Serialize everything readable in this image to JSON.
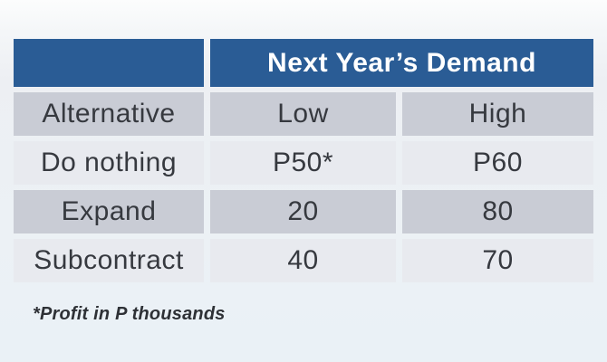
{
  "table": {
    "header_title": "Next Year’s Demand",
    "header_row": [
      "Alternative",
      "Low",
      "High"
    ],
    "rows": [
      [
        "Do nothing",
        "P50*",
        "P60"
      ],
      [
        "Expand",
        "20",
        "80"
      ],
      [
        "Subcontract",
        "40",
        "70"
      ]
    ],
    "footnote": "*Profit in P thousands"
  },
  "colors": {
    "header_blue": "#2a5c95",
    "row_medium_gray": "#c9ccd5",
    "row_light_gray": "#e8eaef",
    "header_text": "#ffffff",
    "body_text": "#36393f"
  },
  "chart_data": {
    "type": "table",
    "title": "Next Year’s Demand",
    "columns": [
      "Alternative",
      "Low",
      "High"
    ],
    "rows": [
      {
        "alternative": "Do nothing",
        "low": "P50*",
        "high": "P60"
      },
      {
        "alternative": "Expand",
        "low": 20,
        "high": 80
      },
      {
        "alternative": "Subcontract",
        "low": 40,
        "high": 70
      }
    ],
    "footnote": "*Profit in P thousands"
  }
}
